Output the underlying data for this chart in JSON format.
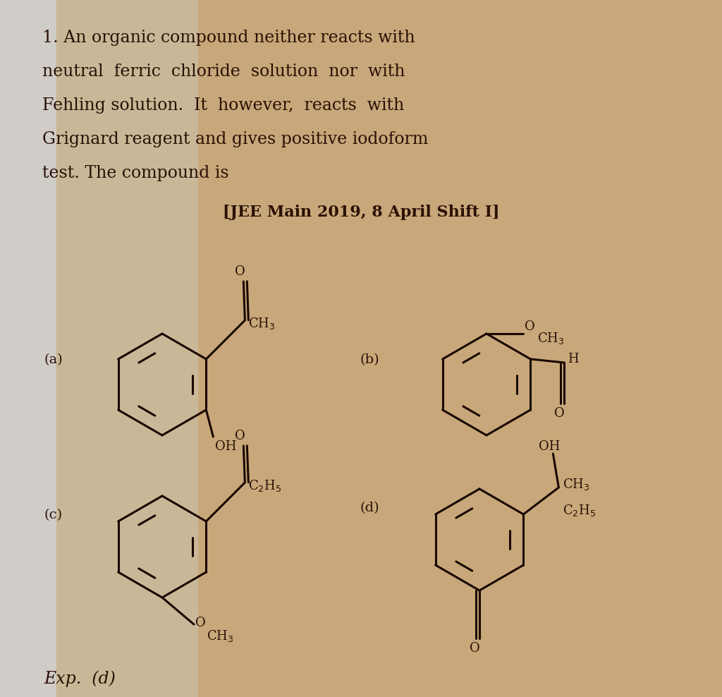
{
  "bg_left": "#d0ccc8",
  "bg_right": "#c8a87a",
  "text_color": "#2a1005",
  "q_lines": [
    "1. An organic compound neither reacts with",
    "neutral  ferric  chloride  solution  nor  with",
    "Fehling solution.  It  however,  reacts  with",
    "Grignard reagent and gives positive iodoform",
    "test. The compound is"
  ],
  "jee_text": "[JEE Main 2019, 8 April Shift I]",
  "exp_text": "Exp.  (d)",
  "fs_main": 17,
  "fs_jee": 16,
  "fs_chem": 13,
  "fs_label": 14,
  "lw": 2.2,
  "ring_r": 72,
  "struct_color": "#1a0800"
}
